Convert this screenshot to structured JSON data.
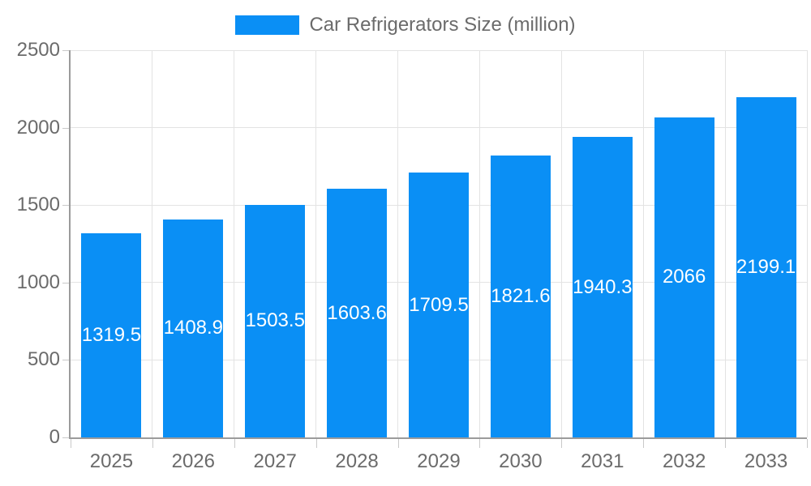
{
  "legend": {
    "label": "Car Refrigerators Size (million)"
  },
  "chart_data": {
    "type": "bar",
    "title": "Car Refrigerators Size (million)",
    "series_name": "Car Refrigerators Size (million)",
    "categories": [
      "2025",
      "2026",
      "2027",
      "2028",
      "2029",
      "2030",
      "2031",
      "2032",
      "2033"
    ],
    "values": [
      1319.5,
      1408.9,
      1503.5,
      1603.6,
      1709.5,
      1821.6,
      1940.3,
      2066,
      2199.1
    ],
    "value_labels": [
      "1319.5",
      "1408.9",
      "1503.5",
      "1603.6",
      "1709.5",
      "1821.6",
      "1940.3",
      "2066",
      "2199.1"
    ],
    "xlabel": "",
    "ylabel": "",
    "ylim": [
      0,
      2500
    ],
    "y_ticks": [
      0,
      500,
      1000,
      1500,
      2000,
      2500
    ],
    "grid": true,
    "legend_position": "top-center",
    "colors": {
      "bar": "#0a8ff5",
      "value_label": "#ffffff",
      "axis_text": "#6b6b6b",
      "legend_text": "#6b6b6b",
      "grid_line": "#e3e3e3",
      "axis_line": "#9b9b9b",
      "tick_mark": "#c9c9c9",
      "background": "#ffffff"
    }
  }
}
